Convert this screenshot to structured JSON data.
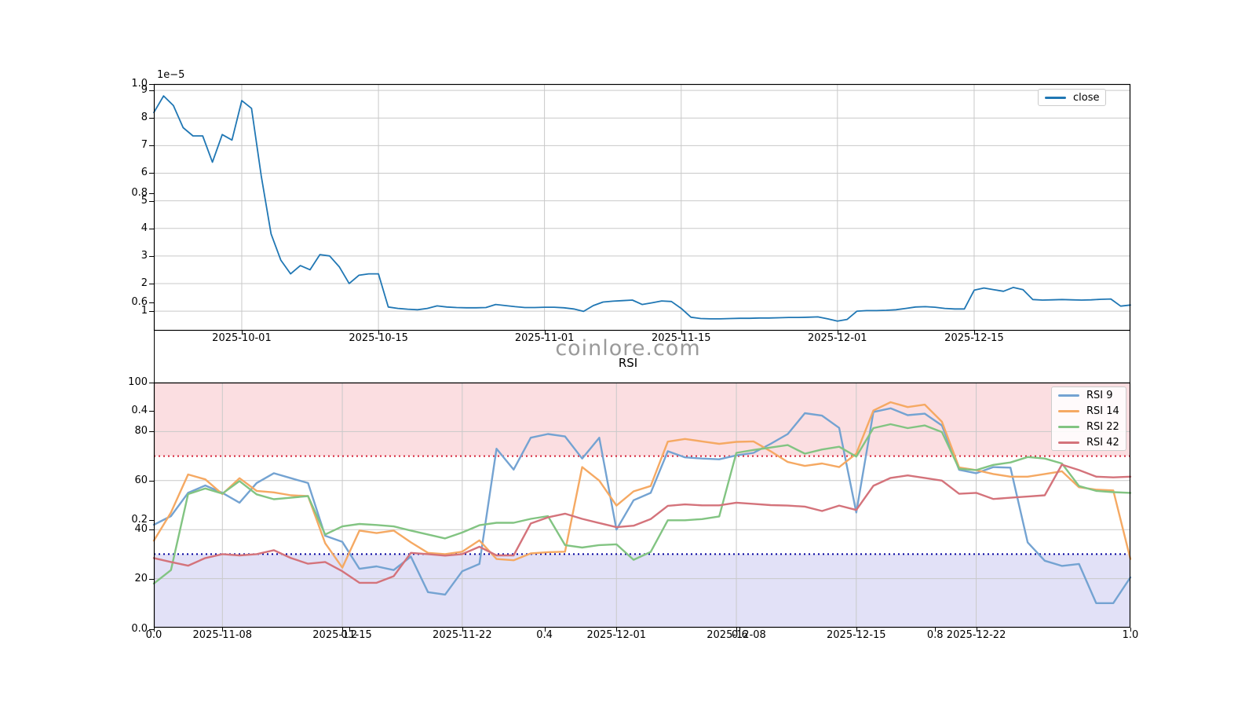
{
  "watermark": "coinlore.com",
  "colors": {
    "close": "#2077b4",
    "rsi9": "#74a3d2",
    "rsi14": "#f5a963",
    "rsi22": "#82c482",
    "rsi42": "#d4737b",
    "grid": "#c9c9c9",
    "frame": "#000000",
    "overbought_band": "#fbdee1",
    "oversold_band": "#e2e1f7",
    "overbought_line": "#d62339",
    "oversold_line": "#00009e",
    "legend_border": "#cccccc"
  },
  "overlay_axis": {
    "y_tick_labels": [
      "1.0",
      "0.8",
      "0.6",
      "0.4",
      "0.2",
      "0.0"
    ],
    "x_tick_labels": [
      "0.0",
      "0.2",
      "0.4",
      "0.6",
      "0.8",
      "1.0"
    ]
  },
  "chart_data": [
    {
      "type": "line",
      "name": "price",
      "legend_label": "close",
      "legend_position": "upper right",
      "scale_label": "1e−5",
      "grid": true,
      "ylim": [
        0.29,
        9.23
      ],
      "y_ticks": [
        1,
        2,
        3,
        4,
        5,
        6,
        7,
        8,
        9
      ],
      "start_date": "2025-09-22",
      "x_ticks": [
        {
          "label": "2025-10-01",
          "day": 9
        },
        {
          "label": "2025-10-15",
          "day": 23
        },
        {
          "label": "2025-11-01",
          "day": 40
        },
        {
          "label": "2025-11-15",
          "day": 54
        },
        {
          "label": "2025-12-01",
          "day": 70
        },
        {
          "label": "2025-12-15",
          "day": 84
        }
      ],
      "series": [
        {
          "name": "close",
          "color_key": "close",
          "unit": "1e-5",
          "values": [
            8.2,
            8.8,
            8.45,
            7.65,
            7.35,
            7.35,
            6.4,
            7.4,
            7.2,
            8.63,
            8.35,
            5.9,
            3.8,
            2.85,
            2.35,
            2.65,
            2.5,
            3.05,
            3.0,
            2.6,
            2.0,
            2.3,
            2.35,
            2.35,
            1.15,
            1.1,
            1.07,
            1.05,
            1.1,
            1.19,
            1.15,
            1.13,
            1.12,
            1.12,
            1.13,
            1.24,
            1.2,
            1.16,
            1.13,
            1.13,
            1.14,
            1.14,
            1.12,
            1.08,
            0.99,
            1.2,
            1.33,
            1.36,
            1.38,
            1.4,
            1.24,
            1.3,
            1.37,
            1.35,
            1.1,
            0.78,
            0.73,
            0.72,
            0.72,
            0.73,
            0.74,
            0.74,
            0.75,
            0.75,
            0.76,
            0.77,
            0.77,
            0.78,
            0.79,
            0.72,
            0.64,
            0.7,
            1.0,
            1.02,
            1.02,
            1.03,
            1.05,
            1.1,
            1.15,
            1.16,
            1.14,
            1.1,
            1.08,
            1.08,
            1.76,
            1.84,
            1.78,
            1.72,
            1.86,
            1.78,
            1.42,
            1.4,
            1.41,
            1.42,
            1.41,
            1.4,
            1.41,
            1.43,
            1.44,
            1.18,
            1.22
          ]
        }
      ]
    },
    {
      "type": "line",
      "name": "rsi",
      "title": "RSI",
      "legend_position": "upper right",
      "grid": true,
      "ylim": [
        0,
        100
      ],
      "y_ticks": [
        20,
        40,
        60,
        80,
        100
      ],
      "overbought_level": 70,
      "oversold_level": 30,
      "start_date": "2025-11-04",
      "x_ticks": [
        {
          "label": "2025-11-08",
          "day": 4
        },
        {
          "label": "2025-11-15",
          "day": 11
        },
        {
          "label": "2025-11-22",
          "day": 18
        },
        {
          "label": "2025-12-01",
          "day": 27
        },
        {
          "label": "2025-12-08",
          "day": 34
        },
        {
          "label": "2025-12-15",
          "day": 41
        },
        {
          "label": "2025-12-22",
          "day": 48
        }
      ],
      "series": [
        {
          "name": "RSI 9",
          "color_key": "rsi9",
          "values": [
            42,
            45.5,
            55,
            58,
            55,
            51,
            59,
            63,
            61,
            59,
            37.5,
            35,
            24,
            25,
            23.5,
            29,
            14.5,
            13.5,
            23,
            26,
            73,
            64.5,
            77.5,
            79,
            78,
            69,
            77.5,
            40,
            52,
            55,
            72,
            69.5,
            69,
            68.7,
            70.3,
            71.3,
            75,
            79,
            87.5,
            86.5,
            81.5,
            47,
            88,
            89.5,
            86.7,
            87.3,
            82.5,
            64.4,
            63,
            65.5,
            65.3,
            34.8,
            27.3,
            25.2,
            26,
            10,
            10,
            20.5
          ]
        },
        {
          "name": "RSI 14",
          "color_key": "rsi14",
          "values": [
            35.5,
            47,
            62.5,
            60.5,
            54.5,
            61,
            55.8,
            55.2,
            54,
            53.7,
            34.5,
            24.5,
            39.6,
            38.6,
            39.6,
            34.8,
            30.5,
            30,
            31,
            35.6,
            28,
            27.5,
            30.3,
            30.8,
            31,
            65.5,
            60,
            49.8,
            55.6,
            57.8,
            75.9,
            77,
            76,
            75,
            75.8,
            76,
            72,
            67.6,
            66,
            67,
            65.5,
            71,
            88.6,
            92,
            90,
            91,
            84,
            65.4,
            64.3,
            62.7,
            61.6,
            61.6,
            62.7,
            63.8,
            57.3,
            56.3,
            56,
            28
          ]
        },
        {
          "name": "RSI 22",
          "color_key": "rsi22",
          "values": [
            18,
            23.5,
            54.5,
            56.8,
            54.7,
            59.8,
            54.4,
            52.4,
            53,
            53.7,
            38,
            41.3,
            42.3,
            41.9,
            41.3,
            39.6,
            38,
            36.4,
            38.8,
            41.8,
            42.8,
            42.8,
            44.4,
            45.5,
            33.7,
            32.7,
            33.7,
            34,
            27.7,
            30.9,
            43.8,
            43.8,
            44.3,
            45.4,
            71.3,
            72.5,
            73.5,
            74.5,
            71,
            72.7,
            73.8,
            69.8,
            81.4,
            83,
            81.4,
            82.5,
            79.8,
            64.8,
            64.3,
            66.4,
            67.4,
            69.6,
            69,
            67,
            57.8,
            55.8,
            55.3,
            55
          ]
        },
        {
          "name": "RSI 42",
          "color_key": "rsi42",
          "values": [
            28.4,
            26.8,
            25.3,
            28.4,
            30,
            29.5,
            30,
            31.6,
            28.4,
            26.1,
            26.8,
            23,
            18.3,
            18.3,
            21,
            30.5,
            30,
            29.4,
            30,
            33,
            29.5,
            29.5,
            42.5,
            45,
            46.5,
            44.4,
            42.7,
            41,
            41.6,
            44.3,
            49.7,
            50.3,
            49.9,
            49.9,
            51,
            50.5,
            50,
            49.8,
            49.4,
            47.6,
            49.8,
            48,
            57.9,
            61.1,
            62.1,
            61.1,
            60,
            54.6,
            55,
            52.5,
            53,
            53.5,
            54,
            66.5,
            64.3,
            61.6,
            61.3,
            61.6
          ]
        }
      ]
    }
  ]
}
